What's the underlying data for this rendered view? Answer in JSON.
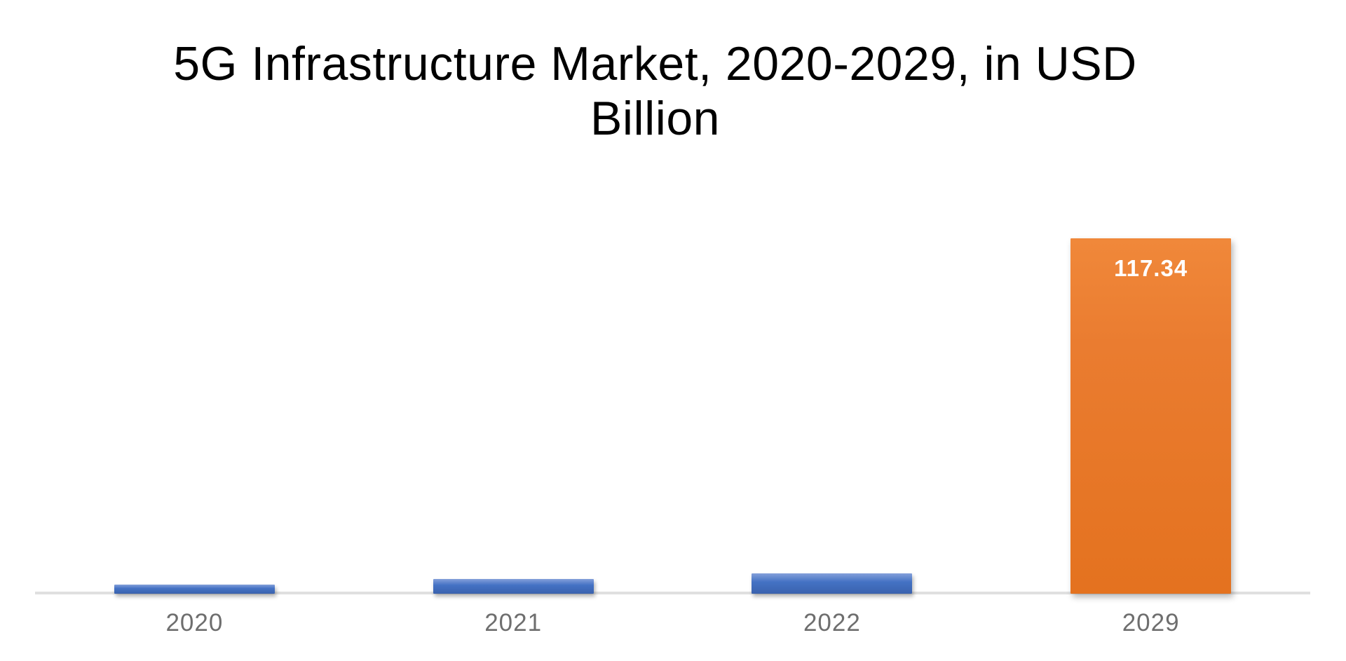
{
  "header": {
    "title_line1": "5G Infrastructure Market, 2020-2029, in USD",
    "title_line2": "Billion"
  },
  "chart_data": {
    "type": "bar",
    "title": "5G Infrastructure Market, 2020-2029, in USD Billion",
    "categories": [
      "2020",
      "2021",
      "2022",
      "2029"
    ],
    "values": [
      3.0,
      4.9,
      6.8,
      117.34
    ],
    "data_labels": [
      "",
      "",
      "",
      "117.34"
    ],
    "unit": "USD Billion",
    "xlabel": "",
    "ylabel": "",
    "ylim": [
      0,
      117.34
    ],
    "grid": false,
    "legend": "none",
    "highlight_category": "2029",
    "colors": {
      "background": "#FFFFFF",
      "title_text": "#000000",
      "bar_blue": "#4472C4",
      "bar_orange": "#EA7C30",
      "axis_line": "#E0E0E0",
      "tick_label": "#6E6E6E",
      "data_label_text": "#FFFFFF"
    }
  }
}
